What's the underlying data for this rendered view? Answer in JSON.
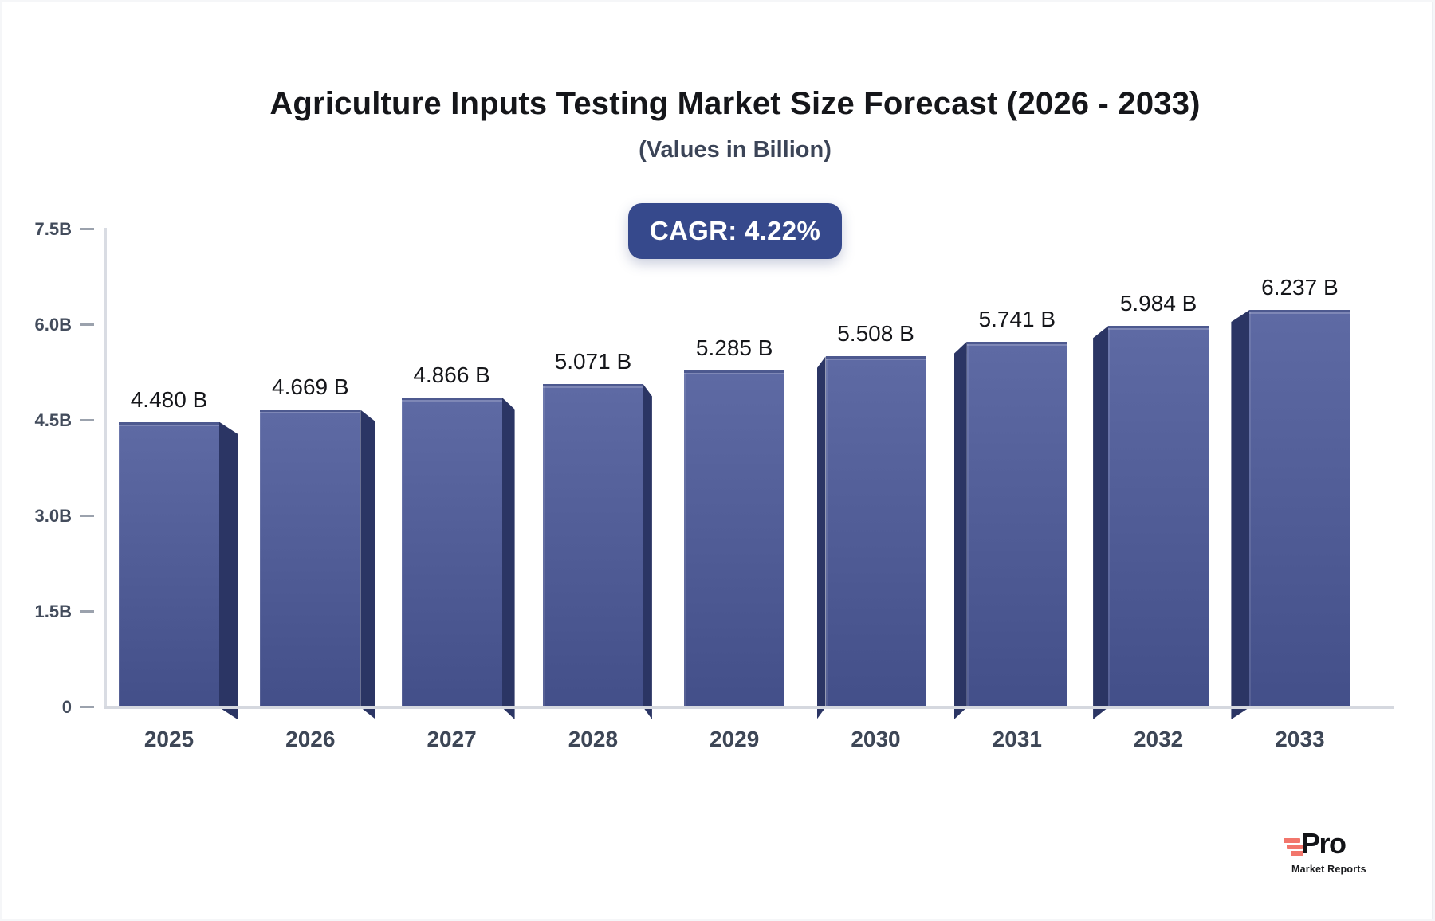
{
  "chart_data": {
    "type": "bar",
    "title": "Agriculture Inputs Testing Market Size Forecast (2026 - 2033)",
    "subtitle": "(Values in Billion)",
    "annotation": "CAGR: 4.22%",
    "categories": [
      "2025",
      "2026",
      "2027",
      "2028",
      "2029",
      "2030",
      "2031",
      "2032",
      "2033"
    ],
    "values": [
      4.48,
      4.669,
      4.866,
      5.071,
      5.285,
      5.508,
      5.741,
      5.984,
      6.237
    ],
    "value_labels": [
      "4.480 B",
      "4.669 B",
      "4.866 B",
      "5.071 B",
      "5.285 B",
      "5.508 B",
      "5.741 B",
      "5.984 B",
      "6.237 B"
    ],
    "unit": "Billion",
    "ylim": [
      0,
      7.5
    ],
    "y_ticks": [
      {
        "value": 0,
        "label": "0"
      },
      {
        "value": 1.5,
        "label": "1.5B"
      },
      {
        "value": 3.0,
        "label": "3.0B"
      },
      {
        "value": 4.5,
        "label": "4.5B"
      },
      {
        "value": 6.0,
        "label": "6.0B"
      },
      {
        "value": 7.5,
        "label": "7.5B"
      }
    ],
    "grid": false,
    "legend": "none",
    "colors": {
      "bar_top": "#5e6aa4",
      "bar_bottom": "#434f89",
      "bar_side": "#2b3564",
      "badge_bg": "#36498c",
      "badge_text": "#ffffff",
      "axis_line": "#d5d8df",
      "tick_text": "#434c5c"
    }
  },
  "logo": {
    "name": "Pro",
    "tagline": "Market Reports",
    "accent_color": "#f2766c"
  }
}
